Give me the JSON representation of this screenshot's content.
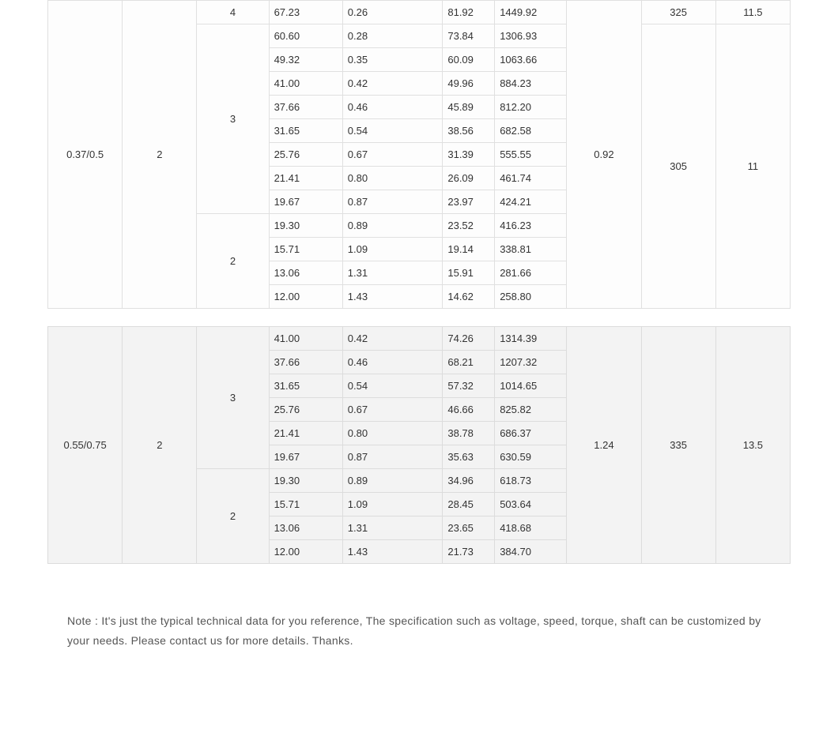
{
  "table1": {
    "background": "#fdfdfd",
    "border_color": "#e0e0e0",
    "power": "0.37/0.5",
    "poles": "2",
    "ratio_cur": "0.92",
    "topRow": {
      "ratio": "4",
      "c4": "67.23",
      "c5": "0.26",
      "c6": "81.92",
      "c7": "1449.92",
      "c9": "325",
      "c10": "11.5"
    },
    "g3": {
      "ratio": "3",
      "c9": "305",
      "c10": "11",
      "rows": [
        {
          "c4": "60.60",
          "c5": "0.28",
          "c6": "73.84",
          "c7": "1306.93"
        },
        {
          "c4": "49.32",
          "c5": "0.35",
          "c6": "60.09",
          "c7": "1063.66"
        },
        {
          "c4": "41.00",
          "c5": "0.42",
          "c6": "49.96",
          "c7": "884.23"
        },
        {
          "c4": "37.66",
          "c5": "0.46",
          "c6": "45.89",
          "c7": "812.20"
        },
        {
          "c4": "31.65",
          "c5": "0.54",
          "c6": "38.56",
          "c7": "682.58"
        },
        {
          "c4": "25.76",
          "c5": "0.67",
          "c6": "31.39",
          "c7": "555.55"
        },
        {
          "c4": "21.41",
          "c5": "0.80",
          "c6": "26.09",
          "c7": "461.74"
        },
        {
          "c4": "19.67",
          "c5": "0.87",
          "c6": "23.97",
          "c7": "424.21"
        }
      ]
    },
    "g2": {
      "ratio": "2",
      "rows": [
        {
          "c4": "19.30",
          "c5": "0.89",
          "c6": "23.52",
          "c7": "416.23"
        },
        {
          "c4": "15.71",
          "c5": "1.09",
          "c6": "19.14",
          "c7": "338.81"
        },
        {
          "c4": "13.06",
          "c5": "1.31",
          "c6": "15.91",
          "c7": "281.66"
        },
        {
          "c4": "12.00",
          "c5": "1.43",
          "c6": "14.62",
          "c7": "258.80"
        }
      ]
    }
  },
  "table2": {
    "background": "#f3f3f3",
    "border_color": "#dcdcdc",
    "power": "0.55/0.75",
    "poles": "2",
    "ratio_cur": "1.24",
    "c9": "335",
    "c10": "13.5",
    "g3": {
      "ratio": "3",
      "rows": [
        {
          "c4": "41.00",
          "c5": "0.42",
          "c6": "74.26",
          "c7": "1314.39"
        },
        {
          "c4": "37.66",
          "c5": "0.46",
          "c6": "68.21",
          "c7": "1207.32"
        },
        {
          "c4": "31.65",
          "c5": "0.54",
          "c6": "57.32",
          "c7": "1014.65"
        },
        {
          "c4": "25.76",
          "c5": "0.67",
          "c6": "46.66",
          "c7": "825.82"
        },
        {
          "c4": "21.41",
          "c5": "0.80",
          "c6": "38.78",
          "c7": "686.37"
        },
        {
          "c4": "19.67",
          "c5": "0.87",
          "c6": "35.63",
          "c7": "630.59"
        }
      ]
    },
    "g2": {
      "ratio": "2",
      "rows": [
        {
          "c4": "19.30",
          "c5": "0.89",
          "c6": "34.96",
          "c7": "618.73"
        },
        {
          "c4": "15.71",
          "c5": "1.09",
          "c6": "28.45",
          "c7": "503.64"
        },
        {
          "c4": "13.06",
          "c5": "1.31",
          "c6": "23.65",
          "c7": "418.68"
        },
        {
          "c4": "12.00",
          "c5": "1.43",
          "c6": "21.73",
          "c7": "384.70"
        }
      ]
    }
  },
  "note": "Note : It's just the typical technical data for you reference, The specification such as voltage, speed, torque, shaft can be customized by your needs. Please contact us for more details. Thanks."
}
